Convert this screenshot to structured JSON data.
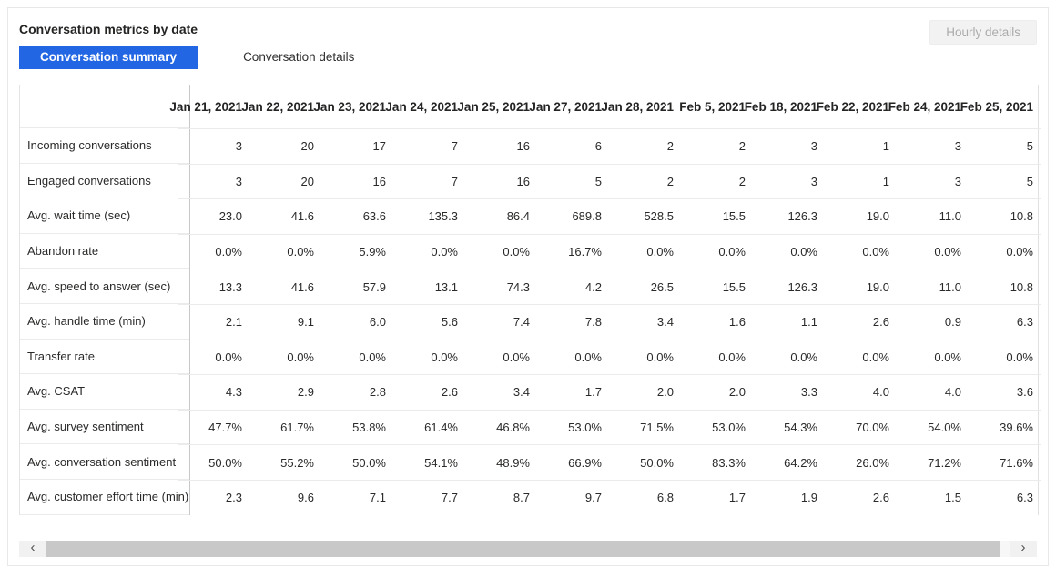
{
  "title": "Conversation metrics by date",
  "toolbar": {
    "hourly_details_label": "Hourly details"
  },
  "tabs": {
    "summary_label": "Conversation summary",
    "details_label": "Conversation details"
  },
  "colors": {
    "accent": "#2266e3",
    "active_tab_text": "#ffffff",
    "disabled_button_bg": "#f2f2f2",
    "disabled_button_text": "#ababab",
    "grid_line": "#ebebeb",
    "column_separator": "#c8c8c8",
    "scrollbar_thumb": "#c8c8c8"
  },
  "table": {
    "columns": [
      "Jan 21, 2021",
      "Jan 22, 2021",
      "Jan 23, 2021",
      "Jan 24, 2021",
      "Jan 25, 2021",
      "Jan 27, 2021",
      "Jan 28, 2021",
      "Feb 5, 2021",
      "Feb 18, 2021",
      "Feb 22, 2021",
      "Feb 24, 2021",
      "Feb 25, 2021"
    ],
    "rows": [
      {
        "label": "Incoming conversations",
        "values": [
          "3",
          "20",
          "17",
          "7",
          "16",
          "6",
          "2",
          "2",
          "3",
          "1",
          "3",
          "5"
        ]
      },
      {
        "label": "Engaged conversations",
        "values": [
          "3",
          "20",
          "16",
          "7",
          "16",
          "5",
          "2",
          "2",
          "3",
          "1",
          "3",
          "5"
        ]
      },
      {
        "label": "Avg. wait time (sec)",
        "values": [
          "23.0",
          "41.6",
          "63.6",
          "135.3",
          "86.4",
          "689.8",
          "528.5",
          "15.5",
          "126.3",
          "19.0",
          "11.0",
          "10.8"
        ]
      },
      {
        "label": "Abandon rate",
        "values": [
          "0.0%",
          "0.0%",
          "5.9%",
          "0.0%",
          "0.0%",
          "16.7%",
          "0.0%",
          "0.0%",
          "0.0%",
          "0.0%",
          "0.0%",
          "0.0%"
        ]
      },
      {
        "label": "Avg. speed to answer (sec)",
        "values": [
          "13.3",
          "41.6",
          "57.9",
          "13.1",
          "74.3",
          "4.2",
          "26.5",
          "15.5",
          "126.3",
          "19.0",
          "11.0",
          "10.8"
        ]
      },
      {
        "label": "Avg. handle time (min)",
        "values": [
          "2.1",
          "9.1",
          "6.0",
          "5.6",
          "7.4",
          "7.8",
          "3.4",
          "1.6",
          "1.1",
          "2.6",
          "0.9",
          "6.3"
        ]
      },
      {
        "label": "Transfer rate",
        "values": [
          "0.0%",
          "0.0%",
          "0.0%",
          "0.0%",
          "0.0%",
          "0.0%",
          "0.0%",
          "0.0%",
          "0.0%",
          "0.0%",
          "0.0%",
          "0.0%"
        ]
      },
      {
        "label": "Avg. CSAT",
        "values": [
          "4.3",
          "2.9",
          "2.8",
          "2.6",
          "3.4",
          "1.7",
          "2.0",
          "2.0",
          "3.3",
          "4.0",
          "4.0",
          "3.6"
        ]
      },
      {
        "label": "Avg. survey sentiment",
        "values": [
          "47.7%",
          "61.7%",
          "53.8%",
          "61.4%",
          "46.8%",
          "53.0%",
          "71.5%",
          "53.0%",
          "54.3%",
          "70.0%",
          "54.0%",
          "39.6%"
        ]
      },
      {
        "label": "Avg. conversation sentiment",
        "values": [
          "50.0%",
          "55.2%",
          "50.0%",
          "54.1%",
          "48.9%",
          "66.9%",
          "50.0%",
          "83.3%",
          "64.2%",
          "26.0%",
          "71.2%",
          "71.6%"
        ]
      },
      {
        "label": "Avg. customer effort time (min)",
        "values": [
          "2.3",
          "9.6",
          "7.1",
          "7.7",
          "8.7",
          "9.7",
          "6.8",
          "1.7",
          "1.9",
          "2.6",
          "1.5",
          "6.3"
        ]
      }
    ]
  },
  "scrollbar": {
    "left_arrow": "‹",
    "right_arrow": "›"
  }
}
